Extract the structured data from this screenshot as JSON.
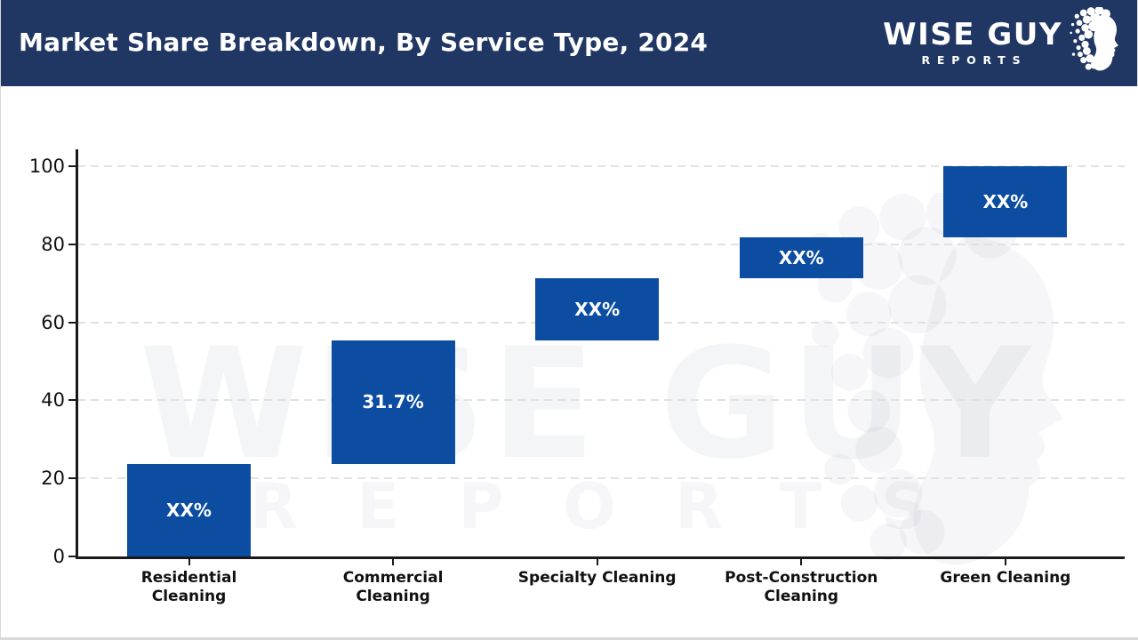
{
  "header": {
    "title": "Market Share Breakdown, By Service Type, 2024",
    "bg_color": "#203764",
    "logo": {
      "line1": "WISE GUY",
      "line2": "REPORTS"
    }
  },
  "watermark": {
    "line1": "WISE GUY",
    "line2": "REPORTS"
  },
  "chart_data": {
    "type": "bar",
    "subtype": "waterfall",
    "title": "Market Share Breakdown, By Service Type, 2024",
    "categories": [
      [
        "Residential",
        "Cleaning"
      ],
      [
        "Commercial",
        "Cleaning"
      ],
      [
        "Specialty Cleaning"
      ],
      [
        "Post-Construction",
        "Cleaning"
      ],
      [
        "Green Cleaning"
      ]
    ],
    "series": [
      {
        "category": "Residential Cleaning",
        "start": 0,
        "end": 23.7,
        "value_label": "XX%"
      },
      {
        "category": "Commercial Cleaning",
        "start": 23.7,
        "end": 55.4,
        "value": 31.7,
        "value_label": "31.7%"
      },
      {
        "category": "Specialty Cleaning",
        "start": 55.4,
        "end": 71.3,
        "value_label": "XX%"
      },
      {
        "category": "Post-Construction Cleaning",
        "start": 71.3,
        "end": 81.8,
        "value_label": "XX%"
      },
      {
        "category": "Green Cleaning",
        "start": 81.8,
        "end": 100,
        "value_label": "XX%"
      }
    ],
    "xlabel": "",
    "ylabel": "",
    "ylim": [
      0,
      105
    ],
    "yticks": [
      0,
      20,
      40,
      60,
      80,
      100
    ],
    "grid": "horizontal dashed",
    "legend": null,
    "bar_color": "#0C4DA2",
    "bar_label_color": "#FFFFFF"
  }
}
